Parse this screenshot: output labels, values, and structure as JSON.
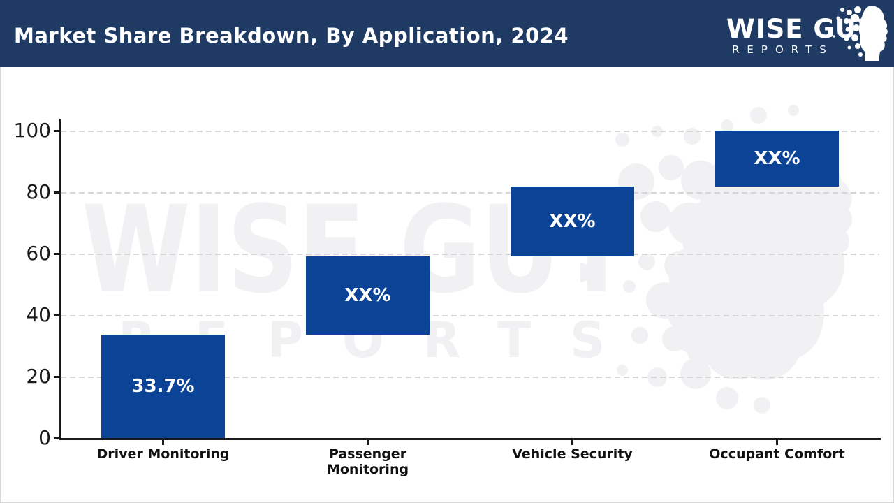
{
  "header": {
    "title": "Market Share Breakdown, By Application, 2024",
    "bg_color": "#1f3a63",
    "logo": {
      "wordmark": "WISE GUY",
      "subtext": "REPORTS"
    }
  },
  "watermark": {
    "wordmark": "WISE GUY",
    "subtext": "REPORTS"
  },
  "chart_data": {
    "type": "bar",
    "variant": "floating-waterfall",
    "title": "Market Share Breakdown, By Application, 2024",
    "categories": [
      "Driver Monitoring",
      "Passenger Monitoring",
      "Vehicle Security",
      "Occupant Comfort"
    ],
    "category_lines": [
      [
        "Driver Monitoring"
      ],
      [
        "Passenger",
        "Monitoring"
      ],
      [
        "Vehicle Security"
      ],
      [
        "Occupant Comfort"
      ]
    ],
    "series": [
      {
        "name": "Market share (%)",
        "segments": [
          {
            "category": "Driver Monitoring",
            "start": 0,
            "end": 33.7,
            "label": "33.7%"
          },
          {
            "category": "Passenger Monitoring",
            "start": 33.7,
            "end": 59.2,
            "label": "XX%"
          },
          {
            "category": "Vehicle Security",
            "start": 59.2,
            "end": 81.8,
            "label": "XX%"
          },
          {
            "category": "Occupant Comfort",
            "start": 81.8,
            "end": 100,
            "label": "XX%"
          }
        ]
      }
    ],
    "ylim": [
      0,
      100
    ],
    "yticks": [
      0,
      20,
      40,
      60,
      80,
      100
    ],
    "xlabel": "",
    "ylabel": "",
    "grid": "horizontal-dashed",
    "legend": "none",
    "colors": {
      "bar": "#0b4397",
      "bar_label": "#ffffff",
      "axis": "#1a1a1a",
      "gridline": "#d6d6d6"
    }
  }
}
